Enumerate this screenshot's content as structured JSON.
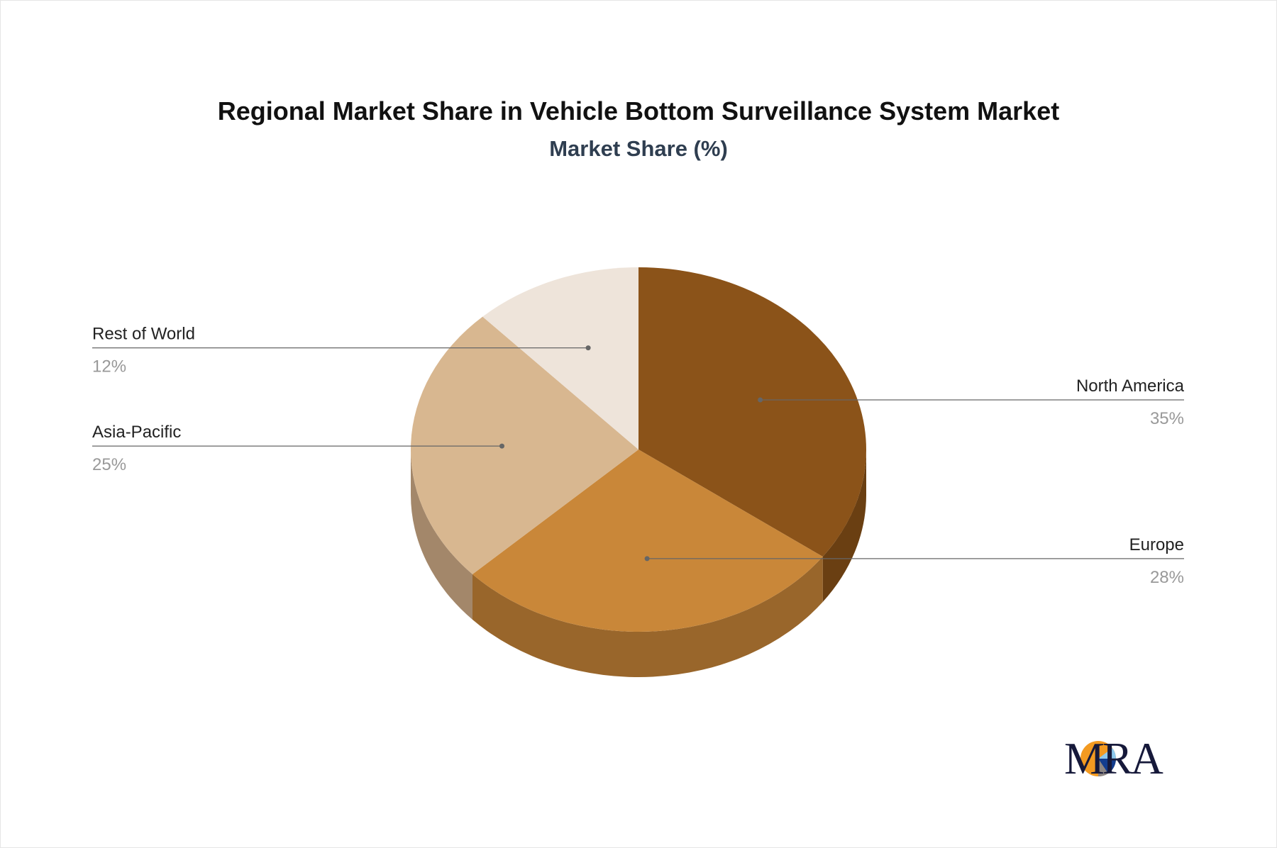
{
  "chart_data": {
    "type": "pie",
    "title": "Regional Market Share in Vehicle Bottom Surveillance System Market",
    "subtitle": "Market Share (%)",
    "style": "3d",
    "slices": [
      {
        "label": "North America",
        "value": 35,
        "display": "35%",
        "color": "#8B5319",
        "side": "#6A3F12"
      },
      {
        "label": "Europe",
        "value": 28,
        "display": "28%",
        "color": "#C98739",
        "side": "#99662B"
      },
      {
        "label": "Asia-Pacific",
        "value": 25,
        "display": "25%",
        "color": "#D8B790",
        "side": "#A3876A"
      },
      {
        "label": "Rest of World",
        "value": 12,
        "display": "12%",
        "color": "#EEE4DA",
        "side": "#B8AEA3"
      }
    ]
  },
  "logo": {
    "text": "MRA"
  }
}
